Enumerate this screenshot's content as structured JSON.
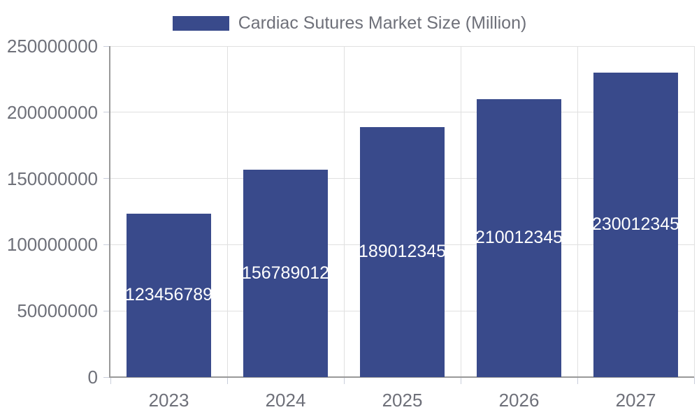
{
  "chart_data": {
    "type": "bar",
    "title": "Cardiac Sutures Market Size (Million)",
    "legend": {
      "label": "Cardiac Sutures Market Size (Million)",
      "position": "top-center"
    },
    "categories": [
      "2023",
      "2024",
      "2025",
      "2026",
      "2027"
    ],
    "series": [
      {
        "name": "Cardiac Sutures Market Size (Million)",
        "values": [
          123456789,
          156789012,
          189012345,
          210012345,
          230012345
        ],
        "data_labels": [
          "123456789",
          "156789012",
          "189012345",
          "210012345",
          "230012345"
        ]
      }
    ],
    "xlabel": "",
    "ylabel": "",
    "ylim": [
      0,
      250000000
    ],
    "yticks": [
      0,
      50000000,
      100000000,
      150000000,
      200000000,
      250000000
    ],
    "ytick_labels": [
      "0",
      "50000000",
      "100000000",
      "150000000",
      "200000000",
      "250000000"
    ],
    "grid": true,
    "colors": {
      "bar": "#394A8B",
      "bar_label_text": "#FFFFFF",
      "axis_label_text": "#6E7079",
      "legend_text": "#6E7079",
      "gridline": "#E0E0E0",
      "axis_line": "#999999",
      "tick": "#C9CEDB",
      "background": "#FFFFFF"
    }
  }
}
